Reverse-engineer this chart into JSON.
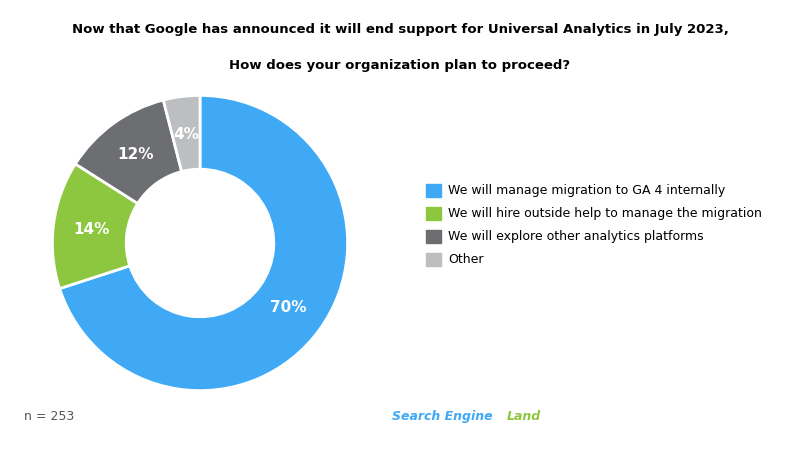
{
  "title_line1": "Now that Google has announced it will end support for Universal Analytics in July 2023,",
  "title_line2": "How does your organization plan to proceed?",
  "slices": [
    70,
    14,
    12,
    4
  ],
  "labels": [
    "70%",
    "14%",
    "12%",
    "4%"
  ],
  "colors": [
    "#3FA9F5",
    "#8DC63F",
    "#6D6E71",
    "#BCBEC0"
  ],
  "legend_labels": [
    "We will manage migration to GA 4 internally",
    "We will hire outside help to manage the migration",
    "We will explore other analytics platforms",
    "Other"
  ],
  "startangle": 90,
  "n_label": "n = 253",
  "brand_text1": "Search Engine",
  "brand_text2": "Land",
  "brand_color1": "#3FA9F5",
  "brand_color2": "#8DC63F",
  "background_color": "#FFFFFF"
}
